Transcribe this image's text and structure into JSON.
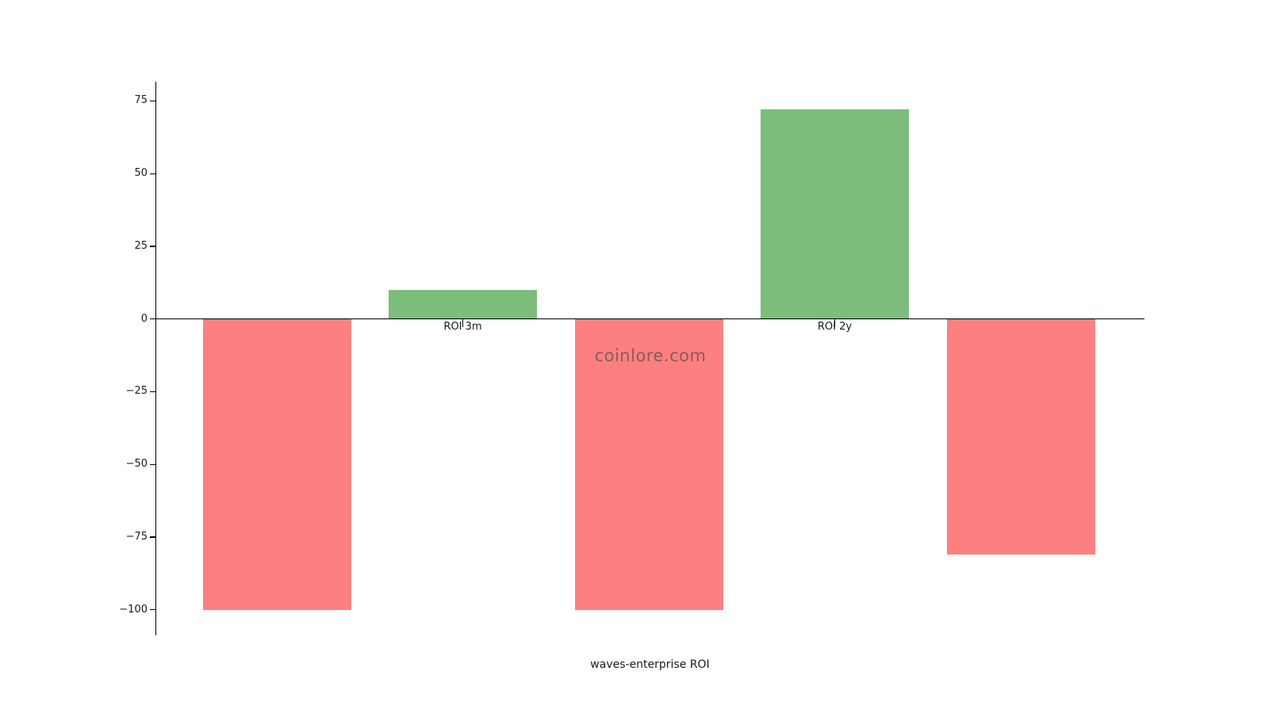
{
  "title": {
    "text": "waves-enterprise ROI",
    "color": "#1a1a1a"
  },
  "watermark": {
    "text": "coinlore.com",
    "color": "#454545"
  },
  "axis": {
    "line_color": "#000000",
    "tick_label_color": "#1a1a1a"
  },
  "chart_data": {
    "type": "bar",
    "title": "waves-enterprise ROI",
    "categories": [
      "",
      "ROI 3m",
      "",
      "ROI 2y",
      ""
    ],
    "values": [
      -100,
      10,
      -100,
      72,
      -81
    ],
    "color_positive": "#7cbd7c",
    "color_negative": "#fc8080",
    "yticks": [
      {
        "value": 75,
        "label": "75"
      },
      {
        "value": 50,
        "label": "50"
      },
      {
        "value": 25,
        "label": "25"
      },
      {
        "value": 0,
        "label": "0"
      },
      {
        "value": -25,
        "label": "−25"
      },
      {
        "value": -50,
        "label": "−50"
      },
      {
        "value": -75,
        "label": "−75"
      },
      {
        "value": -100,
        "label": "−100"
      }
    ],
    "ylim": [
      -109,
      82
    ],
    "xlabel": "",
    "ylabel": "",
    "grid": false,
    "legend": "none",
    "watermark": "coinlore.com"
  }
}
